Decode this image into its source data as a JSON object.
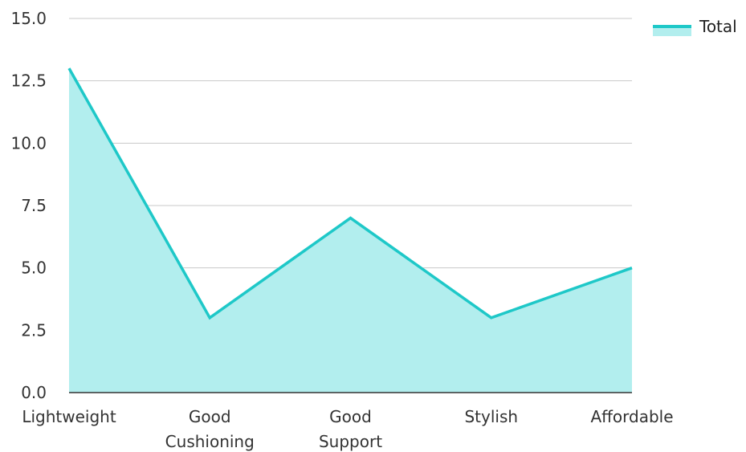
{
  "chart_data": {
    "type": "area",
    "categories": [
      "Lightweight",
      "Good Cushioning",
      "Good Support",
      "Stylish",
      "Affordable"
    ],
    "series": [
      {
        "name": "Total",
        "values": [
          13,
          3,
          7,
          3,
          5
        ]
      }
    ],
    "ylim": [
      0,
      15
    ],
    "yticks": [
      "0.0",
      "2.5",
      "5.0",
      "7.5",
      "10.0",
      "12.5",
      "15.0"
    ],
    "grid": true,
    "legend_position": "top-right",
    "colors": {
      "line": "#1ec8c8",
      "fill": "#b2eeee",
      "grid": "#c8c8c8",
      "axis": "#333333"
    }
  }
}
